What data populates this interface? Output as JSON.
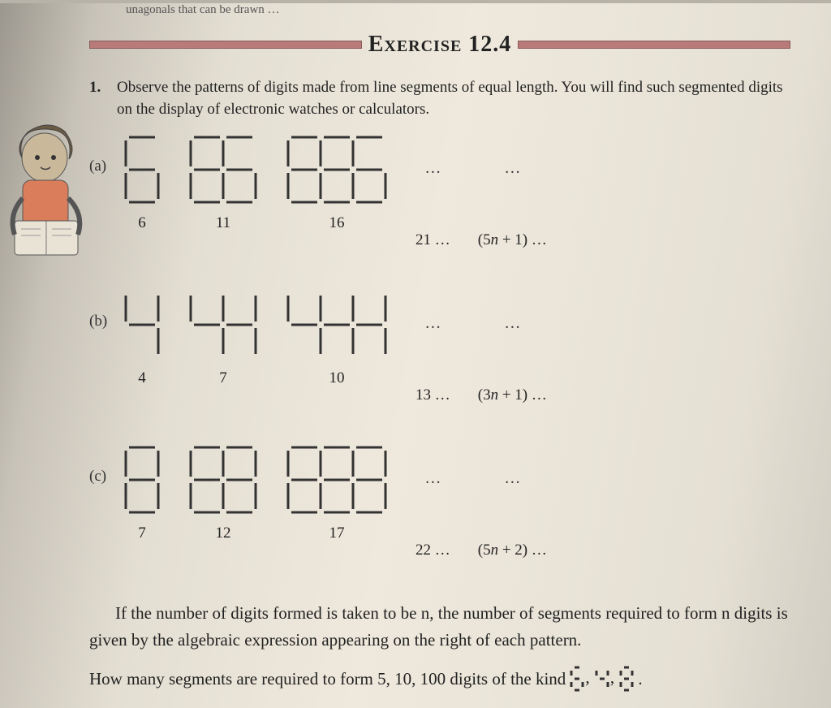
{
  "colors": {
    "page_bg": "#efe9dd",
    "title_line": "#b97a7a",
    "text": "#2a2a2a",
    "segment": "#333333"
  },
  "typography": {
    "body_fontsize": 19,
    "title_fontsize": 28,
    "bottom_fontsize": 21,
    "family": "Times New Roman, serif"
  },
  "cutoff_text": "unagonals that can be drawn …",
  "exercise_title": "Exercise 12.4",
  "question": {
    "number": "1.",
    "text": "Observe the patterns of digits made from line segments of equal length. You will find such segmented digits on the display of electronic watches or calculators."
  },
  "rows": [
    {
      "label": "(a)",
      "sequence": [
        "6",
        "11",
        "16",
        "21 …"
      ],
      "formula": "(5n + 1) …",
      "dots": "…",
      "digit_kind": "six",
      "unit_w": 48,
      "unit_h": 84,
      "cell": 40,
      "counts": [
        1,
        2,
        3
      ]
    },
    {
      "label": "(b)",
      "sequence": [
        "4",
        "7",
        "10",
        "13 …"
      ],
      "formula": "(3n + 1) …",
      "dots": "…",
      "digit_kind": "four",
      "unit_w": 48,
      "unit_h": 84,
      "cell": 40,
      "counts": [
        1,
        2,
        3
      ]
    },
    {
      "label": "(c)",
      "sequence": [
        "7",
        "12",
        "17",
        "22 …"
      ],
      "formula": "(5n + 2) …",
      "dots": "…",
      "digit_kind": "eight",
      "unit_w": 48,
      "unit_h": 84,
      "cell": 40,
      "counts": [
        1,
        2,
        3
      ]
    }
  ],
  "bottom_para": "If the number of digits formed is taken to be n, the number of segments required to form n digits is given by the algebraic expression appearing on the right of each pattern.",
  "bottom_question_prefix": "How many segments are required to form 5, 10, 100 digits of the kind ",
  "bottom_question_suffix": "."
}
